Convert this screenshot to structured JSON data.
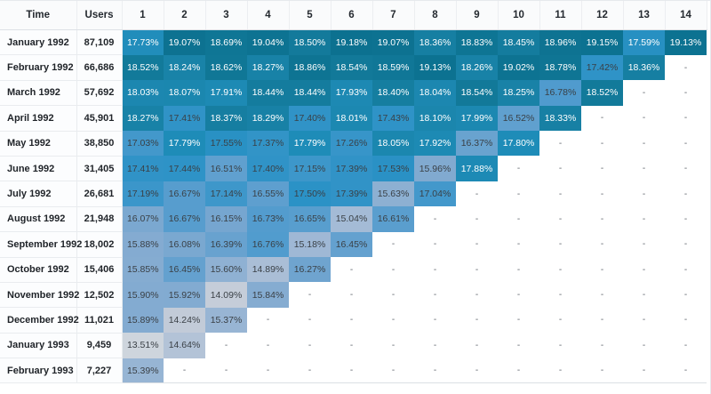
{
  "chart_data": {
    "type": "heatmap",
    "corner_label": "Time",
    "users_label": "Users",
    "period_labels": [
      "1",
      "2",
      "3",
      "4",
      "5",
      "6",
      "7",
      "8",
      "9",
      "10",
      "11",
      "12",
      "13",
      "14"
    ],
    "empty_placeholder": "-",
    "value_suffix": "%",
    "value_decimals": 2,
    "value_range": [
      13.51,
      19.18
    ],
    "white_text_threshold": 17.58,
    "text_color_on_dark": "#ffffff",
    "text_color_on_light": "#3a4046",
    "color_scale": {
      "stops": [
        [
          13.4,
          "#d0d6de"
        ],
        [
          14.2,
          "#c3ccd8"
        ],
        [
          15.1,
          "#a2bad6"
        ],
        [
          16.0,
          "#7fa9d0"
        ],
        [
          16.8,
          "#4f9bce"
        ],
        [
          17.5,
          "#2b92c6"
        ],
        [
          17.8,
          "#1e8cb8"
        ],
        [
          18.2,
          "#1a84aa"
        ],
        [
          18.6,
          "#107796"
        ],
        [
          19.2,
          "#0c7190"
        ]
      ]
    },
    "rows": [
      {
        "time": "January 1992",
        "users": "87,109",
        "values": [
          17.73,
          19.07,
          18.69,
          19.04,
          18.5,
          19.18,
          19.07,
          18.36,
          18.83,
          18.45,
          18.96,
          19.15,
          17.59,
          19.13
        ]
      },
      {
        "time": "February 1992",
        "users": "66,686",
        "values": [
          18.52,
          18.24,
          18.62,
          18.27,
          18.86,
          18.54,
          18.59,
          19.13,
          18.26,
          19.02,
          18.78,
          17.42,
          18.36,
          null
        ]
      },
      {
        "time": "March 1992",
        "users": "57,692",
        "values": [
          18.03,
          18.07,
          17.91,
          18.44,
          18.44,
          17.93,
          18.4,
          18.04,
          18.54,
          18.25,
          16.78,
          18.52,
          null,
          null
        ]
      },
      {
        "time": "April 1992",
        "users": "45,901",
        "values": [
          18.27,
          17.41,
          18.37,
          18.29,
          17.4,
          18.01,
          17.43,
          18.1,
          17.99,
          16.52,
          18.33,
          null,
          null,
          null
        ]
      },
      {
        "time": "May 1992",
        "users": "38,850",
        "values": [
          17.03,
          17.79,
          17.55,
          17.37,
          17.79,
          17.26,
          18.05,
          17.92,
          16.37,
          17.8,
          null,
          null,
          null,
          null
        ]
      },
      {
        "time": "June 1992",
        "users": "31,405",
        "values": [
          17.41,
          17.44,
          16.51,
          17.4,
          17.15,
          17.39,
          17.53,
          15.96,
          17.88,
          null,
          null,
          null,
          null,
          null
        ]
      },
      {
        "time": "July 1992",
        "users": "26,681",
        "values": [
          17.19,
          16.67,
          17.14,
          16.55,
          17.5,
          17.39,
          15.63,
          17.04,
          null,
          null,
          null,
          null,
          null,
          null
        ]
      },
      {
        "time": "August 1992",
        "users": "21,948",
        "values": [
          16.07,
          16.67,
          16.15,
          16.73,
          16.65,
          15.04,
          16.61,
          null,
          null,
          null,
          null,
          null,
          null,
          null
        ]
      },
      {
        "time": "September 1992",
        "users": "18,002",
        "values": [
          15.88,
          16.08,
          16.39,
          16.76,
          15.18,
          16.45,
          null,
          null,
          null,
          null,
          null,
          null,
          null,
          null
        ]
      },
      {
        "time": "October 1992",
        "users": "15,406",
        "values": [
          15.85,
          16.45,
          15.6,
          14.89,
          16.27,
          null,
          null,
          null,
          null,
          null,
          null,
          null,
          null,
          null
        ]
      },
      {
        "time": "November 1992",
        "users": "12,502",
        "values": [
          15.9,
          15.92,
          14.09,
          15.84,
          null,
          null,
          null,
          null,
          null,
          null,
          null,
          null,
          null,
          null
        ]
      },
      {
        "time": "December 1992",
        "users": "11,021",
        "values": [
          15.89,
          14.24,
          15.37,
          null,
          null,
          null,
          null,
          null,
          null,
          null,
          null,
          null,
          null,
          null
        ]
      },
      {
        "time": "January 1993",
        "users": "9,459",
        "values": [
          13.51,
          14.64,
          null,
          null,
          null,
          null,
          null,
          null,
          null,
          null,
          null,
          null,
          null,
          null
        ]
      },
      {
        "time": "February 1993",
        "users": "7,227",
        "values": [
          15.39,
          null,
          null,
          null,
          null,
          null,
          null,
          null,
          null,
          null,
          null,
          null,
          null,
          null
        ]
      }
    ]
  }
}
